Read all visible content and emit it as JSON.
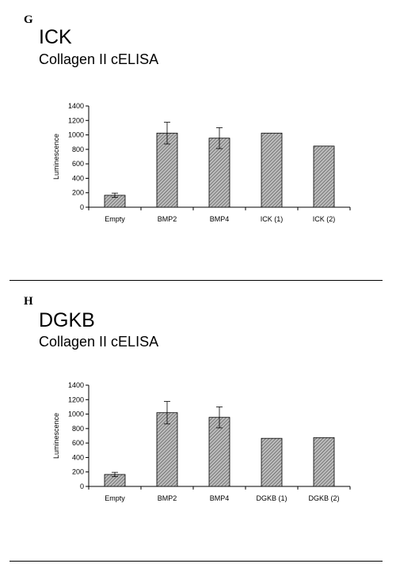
{
  "panels": [
    {
      "letter": "G",
      "title": "ICK",
      "subtitle": "Collagen II cELISA",
      "chart_data": {
        "type": "bar",
        "categories": [
          "Empty",
          "BMP2",
          "BMP4",
          "ICK (1)",
          "ICK (2)"
        ],
        "values": [
          165,
          1025,
          955,
          1025,
          845
        ],
        "errors": [
          30,
          150,
          145,
          null,
          null
        ],
        "ylabel": "Luminescence",
        "xlabel": "",
        "ylim": [
          0,
          1400
        ],
        "yticks": [
          0,
          200,
          400,
          600,
          800,
          1000,
          1200,
          1400
        ],
        "grid": false
      }
    },
    {
      "letter": "H",
      "title": "DGKB",
      "subtitle": "Collagen II cELISA",
      "chart_data": {
        "type": "bar",
        "categories": [
          "Empty",
          "BMP2",
          "BMP4",
          "DGKB (1)",
          "DGKB (2)"
        ],
        "values": [
          165,
          1020,
          955,
          665,
          675
        ],
        "errors": [
          30,
          155,
          145,
          null,
          null
        ],
        "ylabel": "Luminescence",
        "xlabel": "",
        "ylim": [
          0,
          1400
        ],
        "yticks": [
          0,
          200,
          400,
          600,
          800,
          1000,
          1200,
          1400
        ],
        "grid": false
      }
    }
  ]
}
